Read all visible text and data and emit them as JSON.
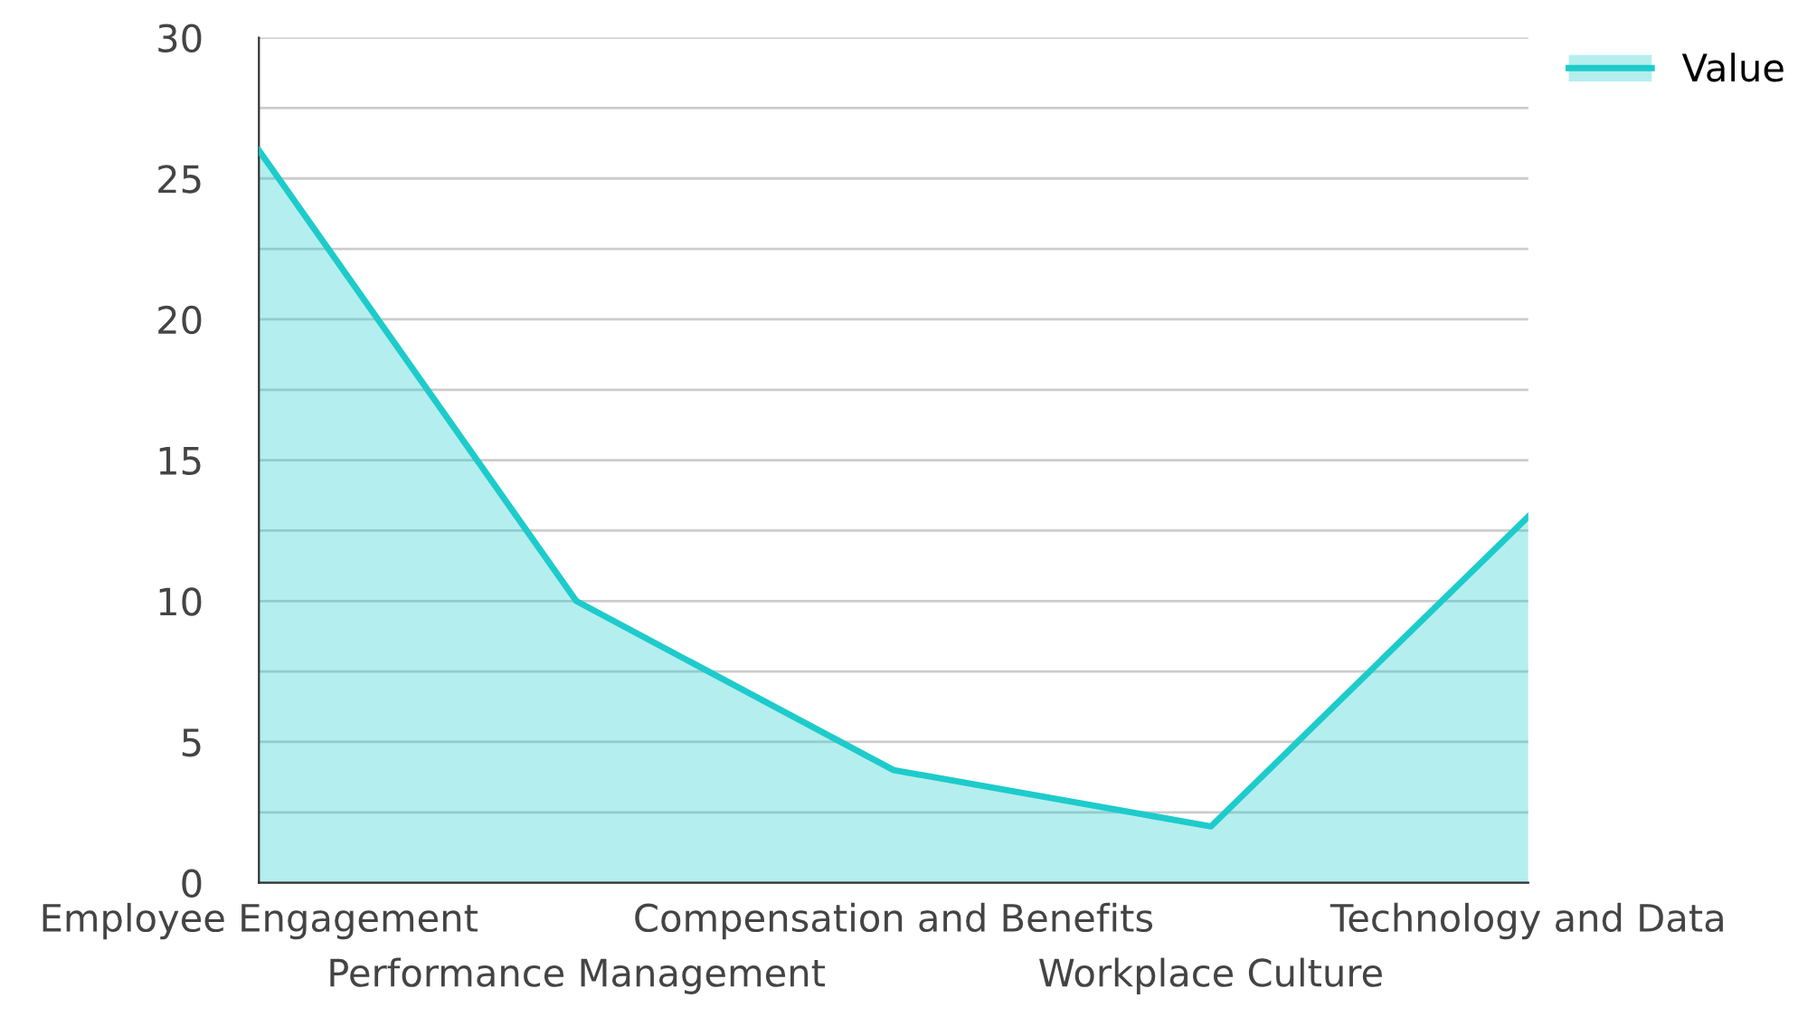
{
  "chart_data": {
    "type": "area",
    "categories": [
      "Employee Engagement",
      "Performance Management",
      "Compensation and Benefits",
      "Workplace Culture",
      "Technology and Data"
    ],
    "series": [
      {
        "name": "Value",
        "color": "#1ecbcb",
        "values": [
          26,
          10,
          4,
          2,
          13
        ]
      }
    ],
    "ylim": [
      0,
      30
    ],
    "yticks": [
      0,
      {
        "value": 2.5,
        "label": null
      },
      5,
      {
        "value": 7.5,
        "label": null
      },
      10,
      {
        "value": 12.5,
        "label": null
      },
      15,
      {
        "value": 17.5,
        "label": null
      },
      20,
      {
        "value": 22.5,
        "label": null
      },
      25,
      {
        "value": 27.5,
        "label": null
      },
      30
    ],
    "grid": "y",
    "legend": "top right"
  }
}
